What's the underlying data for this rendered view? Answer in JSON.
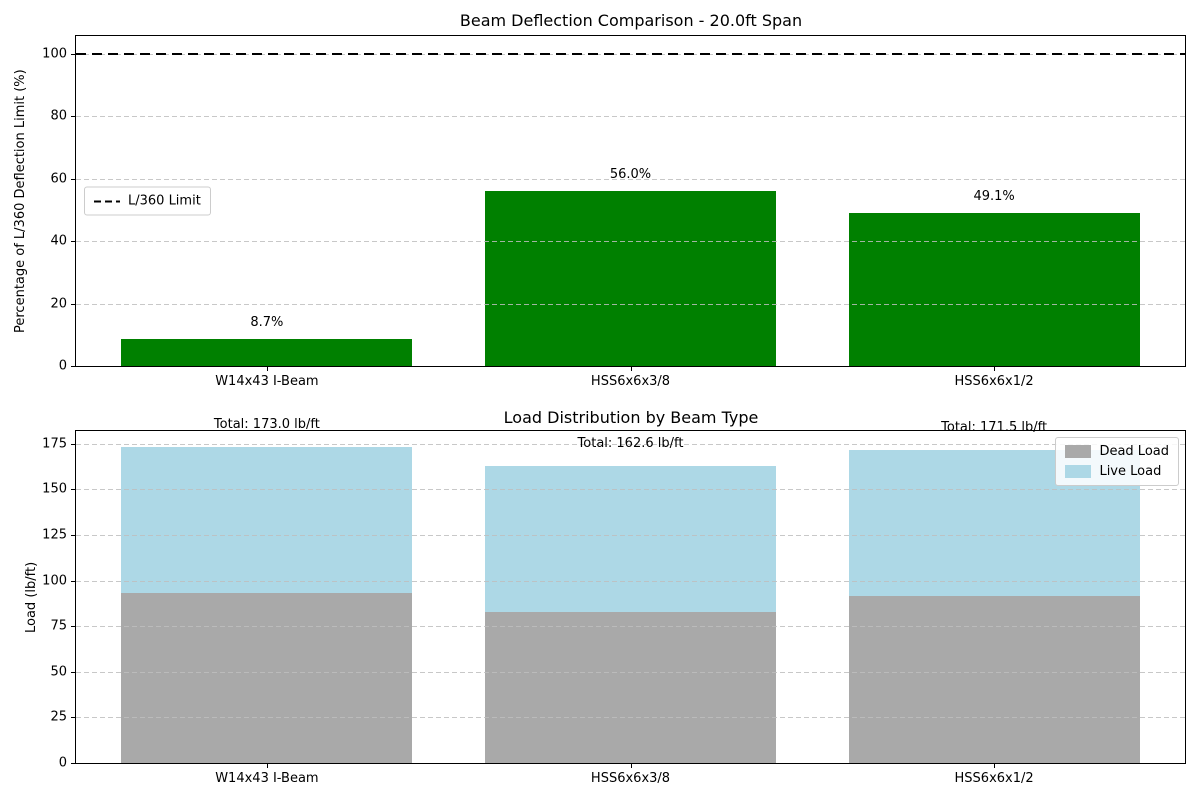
{
  "figure": {
    "background": "#ffffff"
  },
  "chart_data": [
    {
      "type": "bar",
      "title": "Beam Deflection Comparison - 20.0ft Span",
      "ylabel": "Percentage of L/360 Deflection Limit (%)",
      "xlabel": "",
      "categories": [
        "W14x43 I-Beam",
        "HSS6x6x3/8",
        "HSS6x6x1/2"
      ],
      "values": [
        8.7,
        56.0,
        49.1
      ],
      "bar_labels": [
        "8.7%",
        "56.0%",
        "49.1%"
      ],
      "bar_color": "#008000",
      "ylim": [
        0,
        105.75
      ],
      "yticks": [
        0,
        20,
        40,
        60,
        80,
        100
      ],
      "grid": "dashed-horizontal",
      "reference_line": {
        "value": 100,
        "style": "dashed",
        "color": "#000000",
        "label": "L/360 Limit"
      },
      "legend": {
        "position": "center-left",
        "entries": [
          {
            "label": "L/360 Limit",
            "marker": "dashed-line",
            "color": "#000000"
          }
        ]
      }
    },
    {
      "type": "stacked-bar",
      "title": "Load Distribution by Beam Type",
      "ylabel": "Load (lb/ft)",
      "xlabel": "",
      "categories": [
        "W14x43 I-Beam",
        "HSS6x6x3/8",
        "HSS6x6x1/2"
      ],
      "series": [
        {
          "name": "Dead Load",
          "color": "#a9a9a9",
          "values": [
            93.0,
            82.6,
            91.5
          ]
        },
        {
          "name": "Live Load",
          "color": "#add8e6",
          "values": [
            80.0,
            80.0,
            80.0
          ]
        }
      ],
      "totals": [
        173.0,
        162.6,
        171.5
      ],
      "total_labels": [
        "Total: 173.0 lb/ft",
        "Total: 162.6 lb/ft",
        "Total: 171.5 lb/ft"
      ],
      "ylim": [
        0,
        182
      ],
      "yticks": [
        0,
        25,
        50,
        75,
        100,
        125,
        150,
        175
      ],
      "grid": "dashed-horizontal",
      "legend": {
        "position": "top-right",
        "entries": [
          {
            "label": "Dead Load",
            "marker": "square",
            "color": "#a9a9a9"
          },
          {
            "label": "Live Load",
            "marker": "square",
            "color": "#add8e6"
          }
        ]
      }
    }
  ]
}
